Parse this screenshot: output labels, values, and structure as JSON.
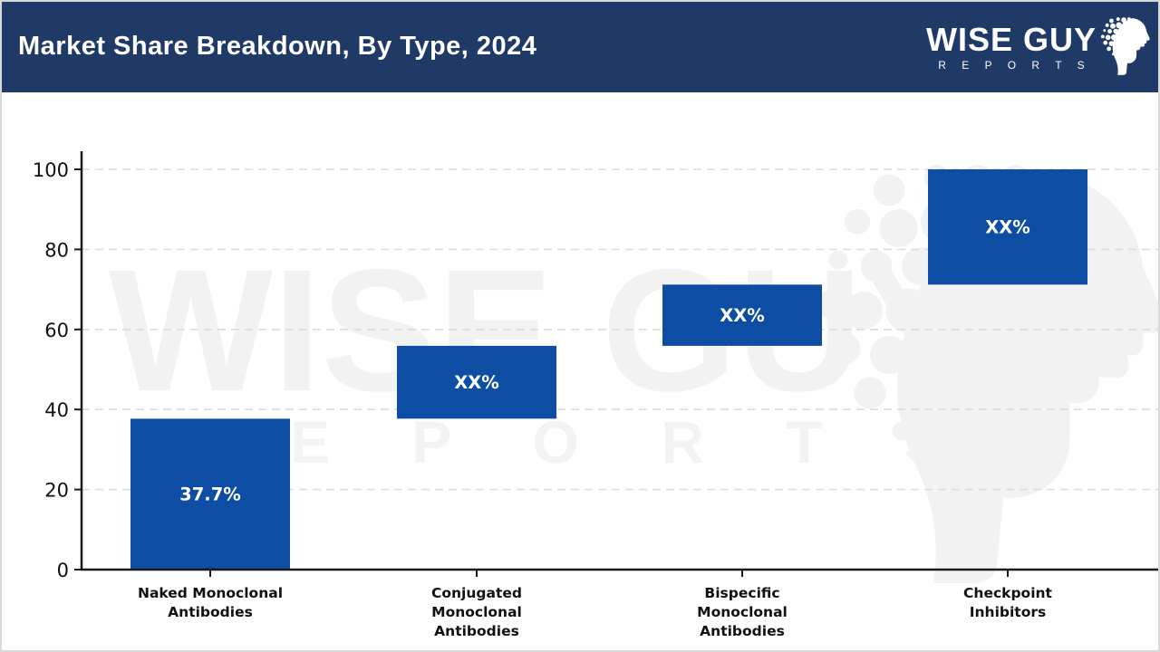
{
  "header": {
    "title": "Market Share Breakdown, By Type, 2024",
    "logo": {
      "wordmark": "WISE GUY",
      "subtext": "R E P O R T S",
      "icon": "dotted-face-profile-icon"
    }
  },
  "watermark": {
    "line1": "WISE GUY",
    "line2": "R E P O R T S",
    "icon": "dotted-face-profile-watermark"
  },
  "chart_data": {
    "type": "bar",
    "subtype": "waterfall",
    "title": "Market Share Breakdown, By Type, 2024",
    "xlabel": "",
    "ylabel": "",
    "ylim": [
      0,
      100
    ],
    "yticks": [
      0,
      20,
      40,
      60,
      80,
      100
    ],
    "grid": {
      "horizontal": true,
      "style": "dashed",
      "color": "#dcdcdc"
    },
    "legend": "none",
    "bar_color": "#0d4da3",
    "bar_label_color": "#ffffff",
    "axis_color": "#1a1a1a",
    "tick_label_color": "#111111",
    "category_label_color": "#111111",
    "categories": [
      "Naked Monoclonal Antibodies",
      "Conjugated Monoclonal Antibodies",
      "Bispecific Monoclonal Antibodies",
      "Checkpoint Inhibitors"
    ],
    "category_lines": [
      [
        "Naked Monoclonal",
        "Antibodies"
      ],
      [
        "Conjugated",
        "Monoclonal",
        "Antibodies"
      ],
      [
        "Bispecific",
        "Monoclonal",
        "Antibodies"
      ],
      [
        "Checkpoint",
        "Inhibitors"
      ]
    ],
    "segments": [
      {
        "category": "Naked Monoclonal Antibodies",
        "start": 0,
        "end": 37.7,
        "value": 37.7,
        "label": "37.7%",
        "masked": false
      },
      {
        "category": "Conjugated Monoclonal Antibodies",
        "start": 37.7,
        "end": 55.9,
        "value": 18.2,
        "label": "XX%",
        "masked": true
      },
      {
        "category": "Bispecific Monoclonal Antibodies",
        "start": 55.9,
        "end": 71.2,
        "value": 15.3,
        "label": "XX%",
        "masked": true
      },
      {
        "category": "Checkpoint Inhibitors",
        "start": 71.2,
        "end": 100,
        "value": 28.8,
        "label": "XX%",
        "masked": true
      }
    ]
  }
}
